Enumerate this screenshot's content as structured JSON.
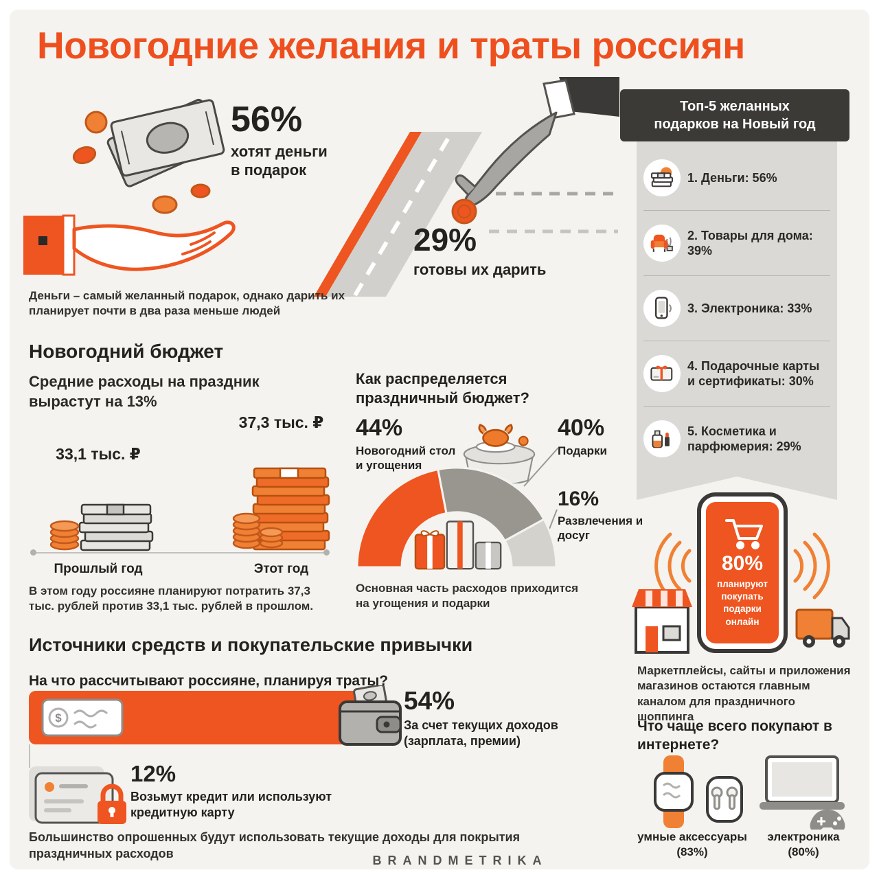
{
  "palette": {
    "accent": "#ee5520",
    "accent_light": "#f08033",
    "dark": "#3a3937",
    "gray": "#98968f",
    "light_gray": "#d4d2cc",
    "background": "#f5f3ef",
    "ribbon_header_bg": "#3b3a37"
  },
  "title": "Новогодние желания и траты россиян",
  "gifts_section": {
    "want": {
      "value": "56%",
      "label": "хотят деньги в подарок"
    },
    "give": {
      "value": "29%",
      "label": "готовы их дарить"
    },
    "caption": "Деньги – самый желанный подарок, однако дарить их планирует почти в два раза меньше людей"
  },
  "top5": {
    "title": "Топ-5 желанных\nподарков на Новый год",
    "items": [
      {
        "icon": "money-stack-icon",
        "label": "1. Деньги: 56%"
      },
      {
        "icon": "armchair-icon",
        "label": "2. Товары для дома: 39%"
      },
      {
        "icon": "smartphone-icon",
        "label": "3. Электроника: 33%"
      },
      {
        "icon": "gift-card-icon",
        "label": "4. Подарочные карты и сертификаты: 30%"
      },
      {
        "icon": "cosmetics-icon",
        "label": "5. Косметика и парфюмерия: 29%"
      }
    ]
  },
  "budget": {
    "heading": "Новогодний бюджет",
    "subheading": "Средние расходы на праздник вырастут на 13%",
    "last_year": {
      "value": "33,1 тыс. ₽",
      "label": "Прошлый год"
    },
    "this_year": {
      "value": "37,3 тыс. ₽",
      "label": "Этот год"
    },
    "caption": "В этом году россияне планируют потратить 37,3 тыс. рублей против 33,1 тыс. рублей в прошлом."
  },
  "distribution": {
    "heading": "Как распределяется праздничный бюджет?",
    "segments": [
      {
        "value": "44%",
        "label": "Новогодний стол и угощения"
      },
      {
        "value": "40%",
        "label": "Подарки"
      },
      {
        "value": "16%",
        "label": "Развлечения и досуг"
      }
    ],
    "caption": "Основная часть расходов приходится на угощения и подарки"
  },
  "online_shopping": {
    "value": "80%",
    "label": "планируют покупать подарки онлайн",
    "caption": "Маркетплейсы, сайты и приложения магазинов остаются главным каналом для праздничного шоппинга"
  },
  "sources": {
    "heading": "Источники средств и покупательские привычки",
    "question": "На что рассчитывают россияне, планируя траты?",
    "check_symbol": "$",
    "items": [
      {
        "value": "54%",
        "label": "За счет текущих доходов (зарплата, премии)"
      },
      {
        "value": "12%",
        "label": "Возьмут кредит или используют кредитную карту"
      }
    ],
    "caption": "Большинство опрошенных будут использовать текущие доходы для покрытия праздничных расходов"
  },
  "online_purchases": {
    "heading": "Что чаще всего покупают в интернете?",
    "items": [
      {
        "icon": "smartwatch-earbuds-icon",
        "label": "умные аксессуары (83%)"
      },
      {
        "icon": "laptop-gamepad-icon",
        "label": "электроника (80%)"
      }
    ]
  },
  "footer": "BRANDMETRIKA",
  "chart_data": [
    {
      "id": "budget_distribution",
      "type": "pie",
      "shape": "semicircle-donut",
      "title": "Как распределяется праздничный бюджет?",
      "categories": [
        "Новогодний стол и угощения",
        "Подарки",
        "Развлечения и досуг"
      ],
      "values": [
        44,
        40,
        16
      ],
      "colors": [
        "#ee5520",
        "#98968f",
        "#d4d2cc"
      ],
      "unit": "%",
      "legend_position": "around"
    },
    {
      "id": "budget_comparison",
      "type": "bar",
      "title": "Средние расходы на праздник вырастут на 13%",
      "categories": [
        "Прошлый год",
        "Этот год"
      ],
      "values": [
        33.1,
        37.3
      ],
      "unit": "тыс. ₽"
    },
    {
      "id": "spending_sources",
      "type": "bar",
      "title": "На что рассчитывают россияне, планируя траты?",
      "categories": [
        "За счет текущих доходов (зарплата, премии)",
        "Возьмут кредит или используют кредитную карту"
      ],
      "values": [
        54,
        12
      ],
      "unit": "%"
    },
    {
      "id": "online_purchases",
      "type": "bar",
      "title": "Что чаще всего покупают в интернете?",
      "categories": [
        "умные аксессуары",
        "электроника"
      ],
      "values": [
        83,
        80
      ],
      "unit": "%"
    }
  ]
}
